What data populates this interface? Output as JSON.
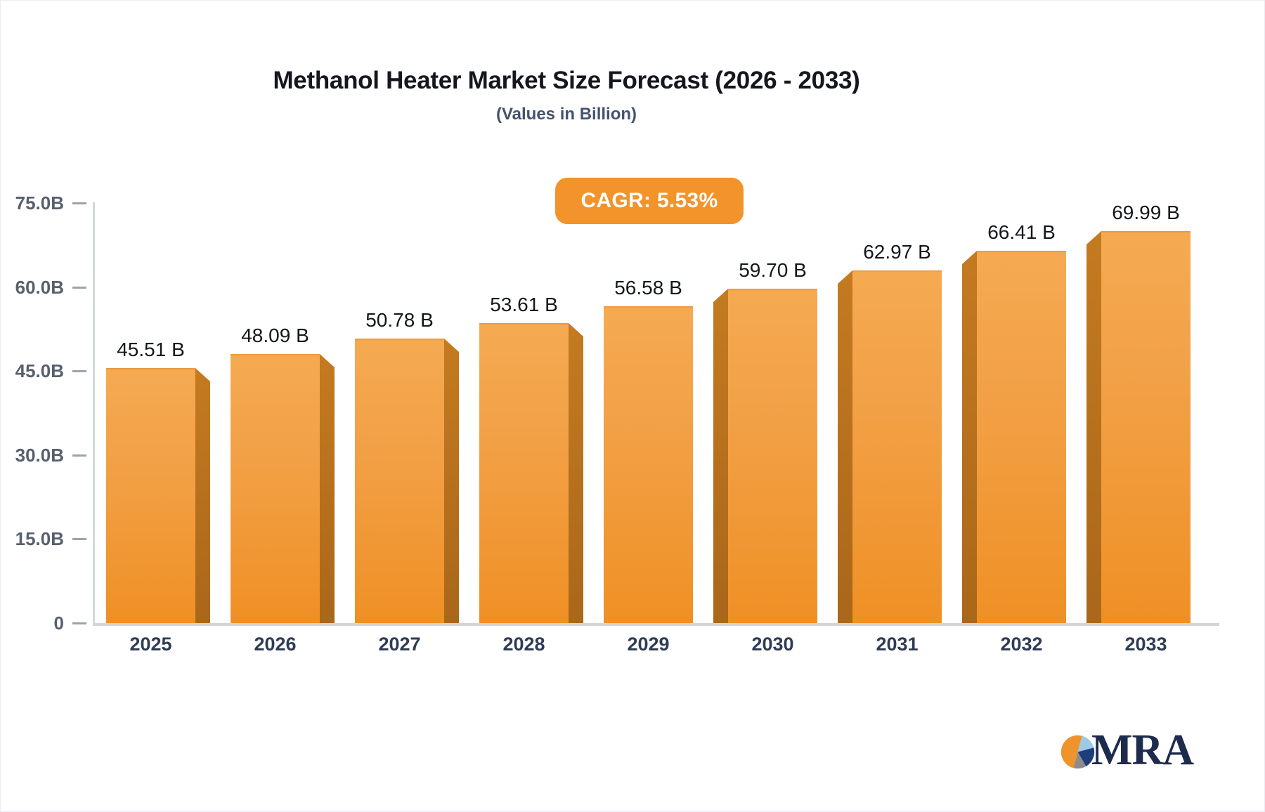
{
  "header": {
    "title": "Methanol Heater Market Size Forecast (2026 - 2033)",
    "subtitle": "(Values in Billion)"
  },
  "badge": {
    "label": "CAGR: 5.53%",
    "bg_color": "#f2932b",
    "text_color": "#ffffff"
  },
  "chart_data": {
    "type": "bar",
    "title": "Methanol Heater Market Size Forecast (2026 - 2033)",
    "subtitle": "(Values in Billion)",
    "xlabel": "",
    "ylabel": "",
    "ylim": [
      0,
      75
    ],
    "grid": false,
    "legend": false,
    "categories": [
      "2025",
      "2026",
      "2027",
      "2028",
      "2029",
      "2030",
      "2031",
      "2032",
      "2033"
    ],
    "values": [
      45.51,
      48.09,
      50.78,
      53.61,
      56.58,
      59.7,
      62.97,
      66.41,
      69.99
    ],
    "value_labels": [
      "45.51 B",
      "48.09 B",
      "50.78 B",
      "53.61 B",
      "56.58 B",
      "59.70 B",
      "62.97 B",
      "66.41 B",
      "69.99 B"
    ],
    "yticks": [
      {
        "value": 75,
        "label": "75.0B"
      },
      {
        "value": 60,
        "label": "60.0B"
      },
      {
        "value": 45,
        "label": "45.0B"
      },
      {
        "value": 30,
        "label": "30.0B"
      },
      {
        "value": 15,
        "label": "15.0B"
      },
      {
        "value": 0,
        "label": "0"
      }
    ],
    "bar_face_color": "#f29b35",
    "bar_side_color": "#b8701d",
    "axis_color": "#d5d5d8",
    "tick_label_color": "#58606d",
    "category_label_color": "#2f3c55"
  },
  "logo": {
    "text": "MRA",
    "text_color": "#1d2b4d",
    "pie_colors": {
      "orange": "#f0932b",
      "light_blue": "#9ecae8",
      "navy": "#1f3d7a",
      "gray": "#8c8c8c"
    }
  }
}
